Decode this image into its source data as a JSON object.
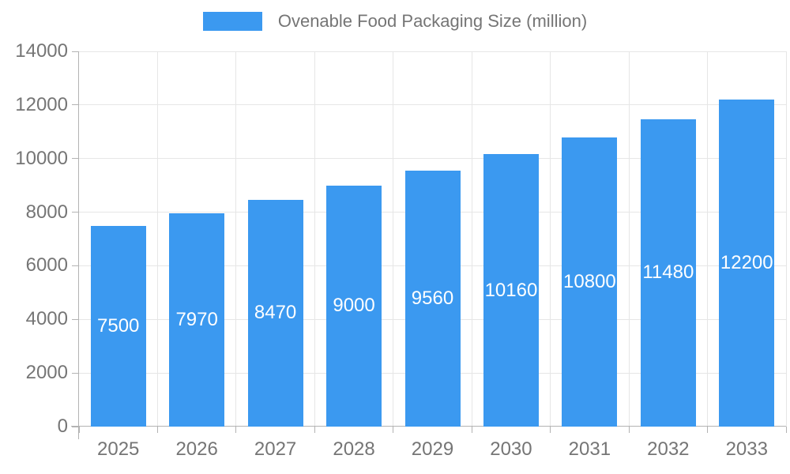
{
  "chart_data": {
    "type": "bar",
    "title": "Ovenable Food Packaging Size (million)",
    "legend": [
      "Ovenable Food Packaging Size (million)"
    ],
    "legend_position": "top-center",
    "categories": [
      "2025",
      "2026",
      "2027",
      "2028",
      "2029",
      "2030",
      "2031",
      "2032",
      "2033"
    ],
    "values": [
      7500,
      7970,
      8470,
      9000,
      9560,
      10160,
      10800,
      11480,
      12200
    ],
    "xlabel": "",
    "ylabel": "",
    "ylim": [
      0,
      14000
    ],
    "ytick_step": 2000,
    "ytick_labels": [
      "0",
      "2000",
      "4000",
      "6000",
      "8000",
      "10000",
      "12000",
      "14000"
    ],
    "grid": true,
    "value_label_position": "inside-center",
    "colors": {
      "bar": "#3B99F0",
      "value_label": "#FFFFFF",
      "axis_text": "#757575",
      "axis_line": "#B3B3B3",
      "gridline": "#E6E6E6",
      "background": "#FFFFFF"
    }
  }
}
